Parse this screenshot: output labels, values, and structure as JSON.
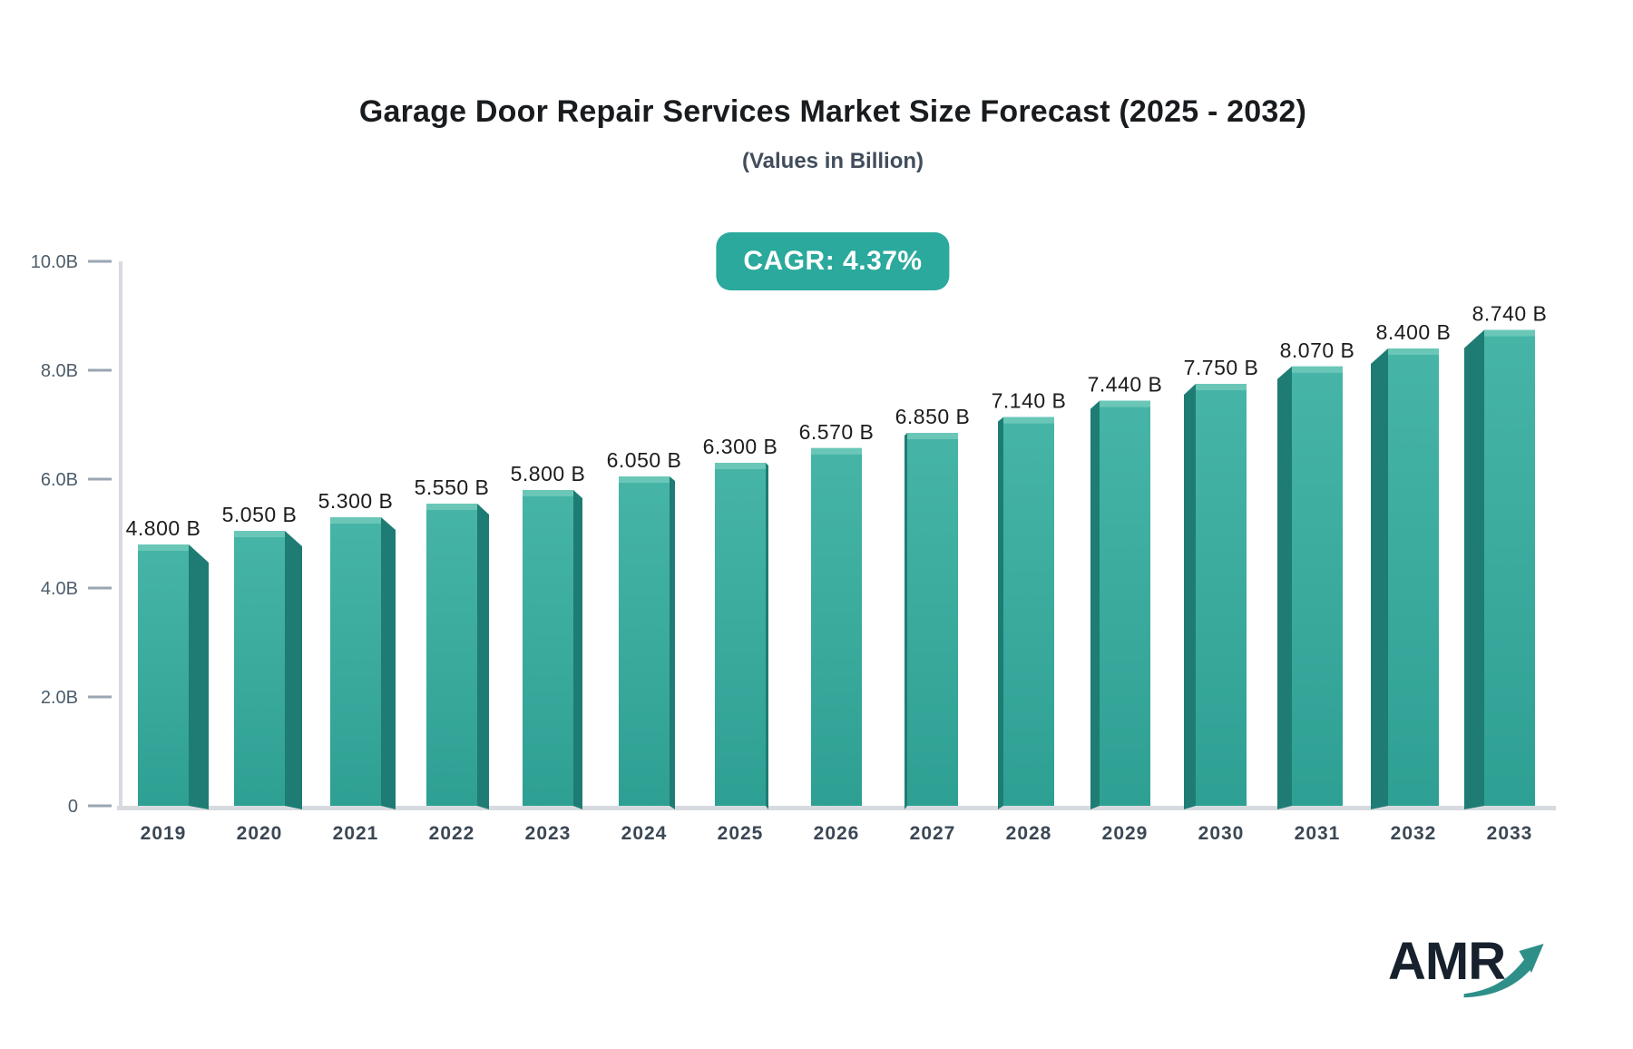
{
  "header": {
    "title": "Garage Door Repair Services Market Size Forecast (2025 - 2032)",
    "subtitle": "(Values in Billion)",
    "cagr_badge": "CAGR: 4.37%"
  },
  "logo": {
    "text": "AMR",
    "icon": "trend-up-arrow-icon"
  },
  "colors": {
    "badge_bg": "#2aa99c",
    "bar_front_top": "#46b5a7",
    "bar_front_bottom": "#2ea093",
    "bar_top_edge": "#6ac7b8",
    "bar_side": "#1e7c74",
    "axis_line": "#d7dbe0",
    "tick_dash": "#9aa6b2",
    "tick_text": "#4d5d6b",
    "year_text": "#3b4754",
    "value_text": "#1c1c1c",
    "title_text": "#191c1f",
    "subtitle_text": "#414d5c",
    "logo_text": "#16212d",
    "logo_arrow": "#2e8f88"
  },
  "chart_data": {
    "type": "bar",
    "title": "Garage Door Repair Services Market Size Forecast (2025 - 2032)",
    "subtitle": "(Values in Billion)",
    "cagr_label": "CAGR: 4.37%",
    "bar_style": "3d-perspective",
    "grid": "off",
    "legend": "none",
    "unit": "Billion",
    "xlabel": "",
    "ylabel": "",
    "ylim": [
      0,
      10
    ],
    "yticks": [
      "0",
      "2.0B",
      "4.0B",
      "6.0B",
      "8.0B",
      "10.0B"
    ],
    "categories": [
      "2019",
      "2020",
      "2021",
      "2022",
      "2023",
      "2024",
      "2025",
      "2026",
      "2027",
      "2028",
      "2029",
      "2030",
      "2031",
      "2032",
      "2033"
    ],
    "values": [
      4.8,
      5.05,
      5.3,
      5.55,
      5.8,
      6.05,
      6.3,
      6.57,
      6.85,
      7.14,
      7.44,
      7.75,
      8.07,
      8.4,
      8.74
    ],
    "value_labels": [
      "4.800 B",
      "5.050 B",
      "5.300 B",
      "5.550 B",
      "5.800 B",
      "6.050 B",
      "6.300 B",
      "6.570 B",
      "6.850 B",
      "7.140 B",
      "7.440 B",
      "7.750 B",
      "8.070 B",
      "8.400 B",
      "8.740 B"
    ]
  }
}
